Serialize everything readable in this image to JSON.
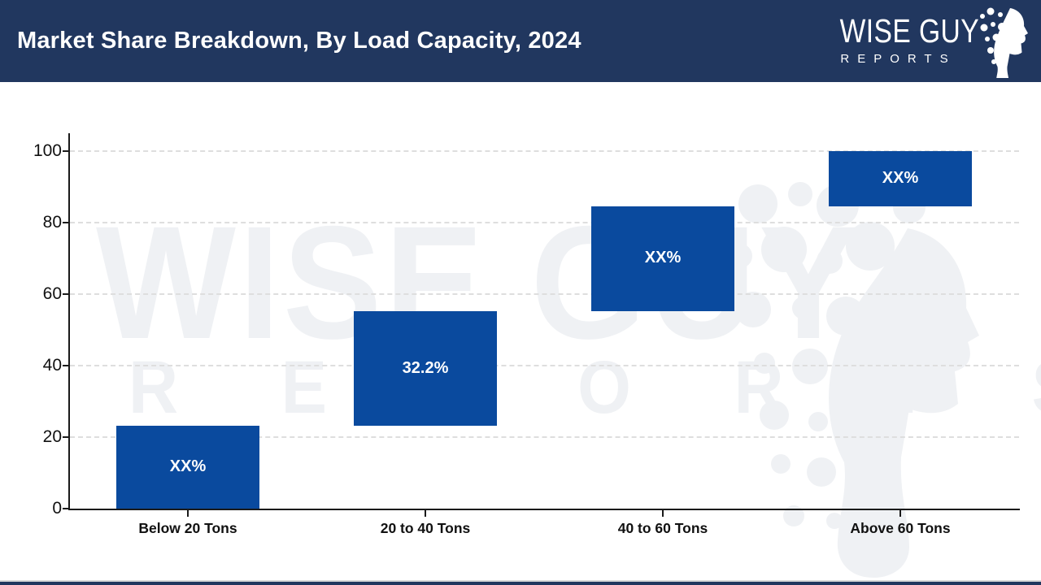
{
  "header": {
    "title": "Market Share Breakdown, By Load Capacity, 2024",
    "logo": {
      "line1": "WISE GUY",
      "line2": "REPORTS"
    }
  },
  "watermark": {
    "line1": "WISE GUY",
    "line2": "REPORTS"
  },
  "colors": {
    "header_bg": "#21375f",
    "bar": "#0a4a9e",
    "axis": "#1a1a1a",
    "gridline": "#dedede",
    "watermark": "#eff1f4",
    "title_text": "#ffffff",
    "bar_label_text": "#ffffff",
    "footer_bar": "#21375f"
  },
  "chart_data": {
    "type": "bar",
    "subtype": "floating-segment-waterfall",
    "title": "Market Share Breakdown, By Load Capacity, 2024",
    "categories": [
      "Below 20 Tons",
      "20 to 40 Tons",
      "40 to 60 Tons",
      "Above 60 Tons"
    ],
    "bars": [
      {
        "category": "Below 20 Tons",
        "start": 0,
        "end": 23.1,
        "label": "XX%"
      },
      {
        "category": "20 to 40 Tons",
        "start": 23.1,
        "end": 55.3,
        "label": "32.2%",
        "value": 32.2
      },
      {
        "category": "40 to 60 Tons",
        "start": 55.3,
        "end": 84.5,
        "label": "XX%"
      },
      {
        "category": "Above 60 Tons",
        "start": 84.5,
        "end": 100,
        "label": "XX%"
      }
    ],
    "yticks": [
      0,
      20,
      40,
      60,
      80,
      100
    ],
    "ylim": [
      0,
      100
    ],
    "xlabel": "",
    "ylabel": "",
    "grid": "horizontal-dashed",
    "legend": "none"
  }
}
